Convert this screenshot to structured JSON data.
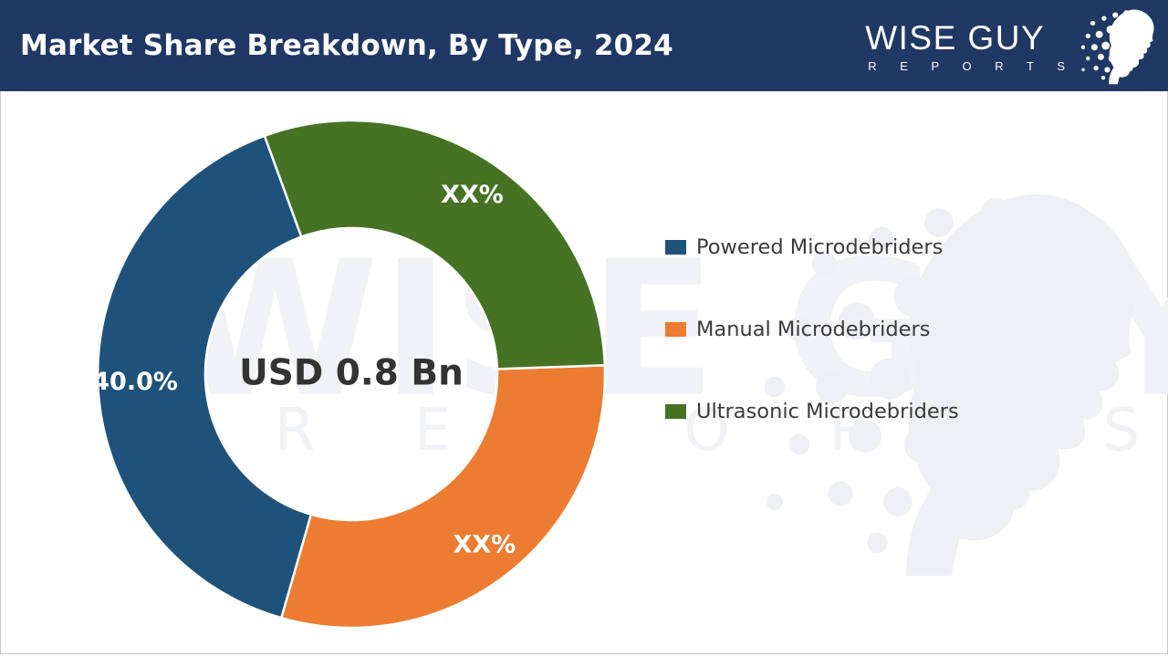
{
  "header": {
    "title": "Market Share Breakdown, By Type, 2024",
    "bg_color": "#1f3864",
    "logo": {
      "line1": "WISE GUY",
      "line2": "R E P O R T S"
    }
  },
  "watermark": {
    "line1": "WISE GUY",
    "line2": "R E P O R T S"
  },
  "chart_data": {
    "type": "pie",
    "donut": true,
    "title": "Market Share Breakdown, By Type, 2024",
    "center_text": "USD 0.8 Bn",
    "start_angle_deg": 110,
    "counterclockwise": true,
    "outer_radius_px": 278,
    "inner_radius_px": 160,
    "label_radius_px": 237,
    "legend_position": "right",
    "segments": [
      {
        "label": "Powered Microdebriders",
        "value": 40,
        "display": "40.0%",
        "color": "#1f527b"
      },
      {
        "label": "Manual Microdebriders",
        "value": 30,
        "display": "XX%",
        "color": "#ec7c31"
      },
      {
        "label": "Ultrasonic Microdebriders",
        "value": 30,
        "display": "XX%",
        "color": "#457323"
      }
    ]
  }
}
